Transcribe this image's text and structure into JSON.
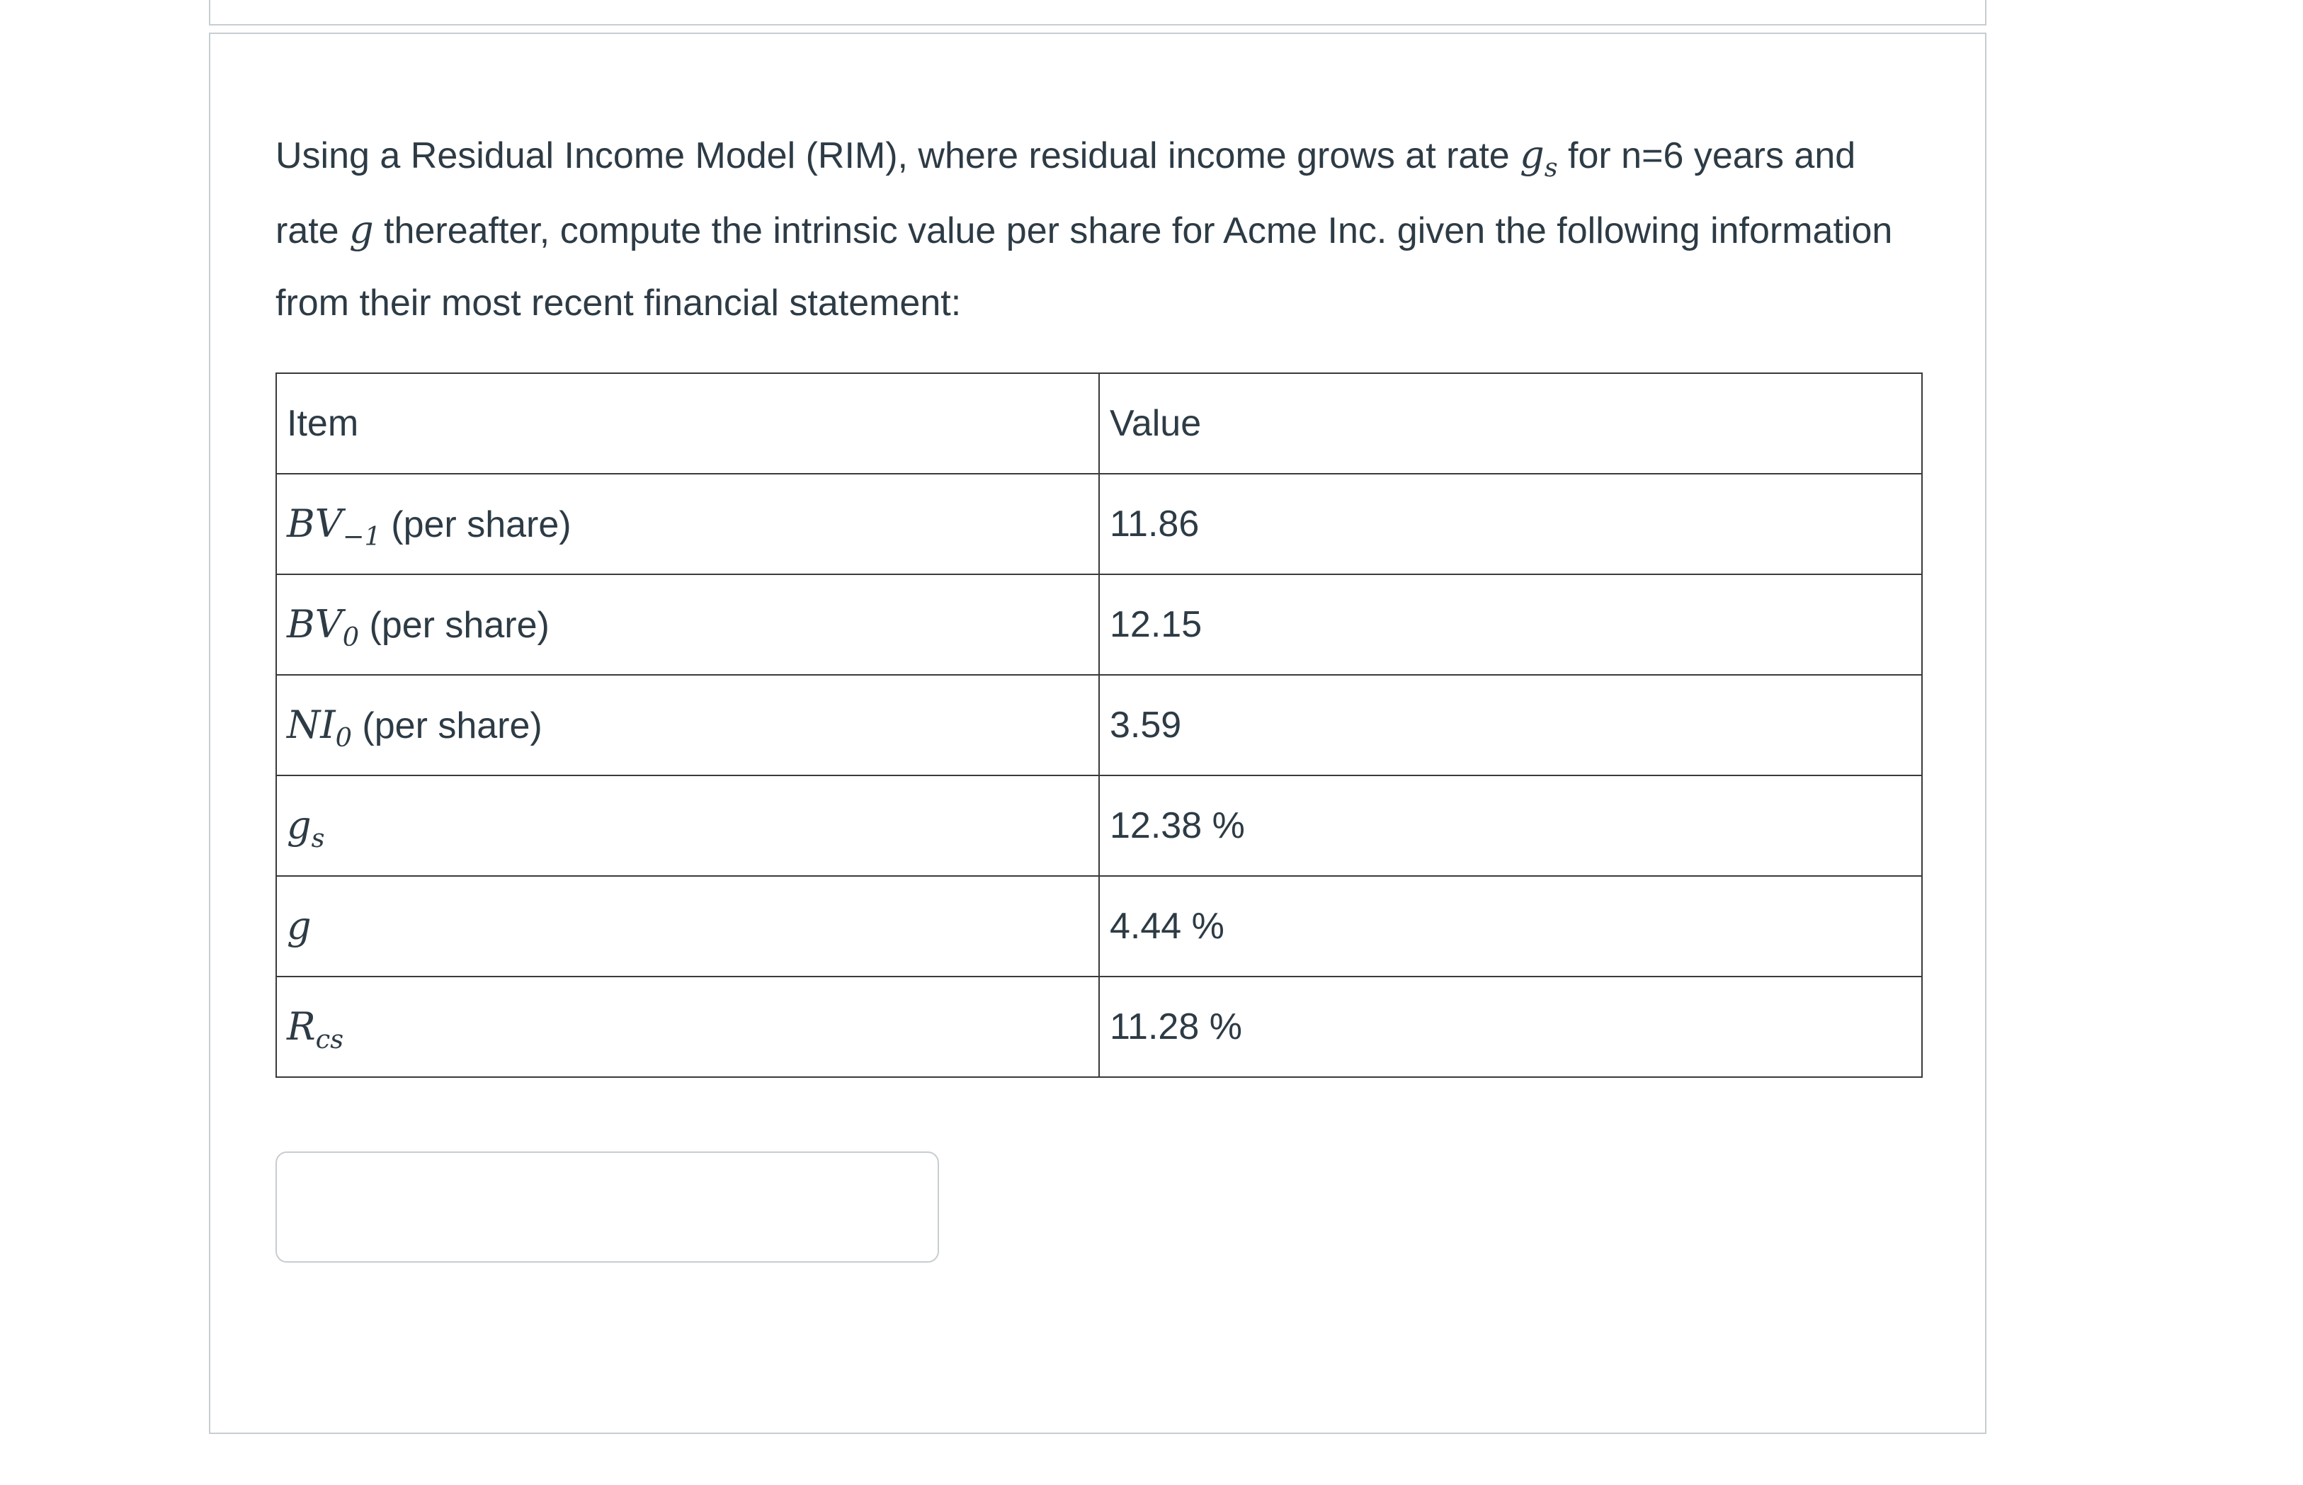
{
  "page": {
    "background": "#ffffff",
    "card_border_color": "#c7cdd1",
    "table_border_color": "#3a3a3a",
    "text_color": "#2d3b45"
  },
  "question": {
    "seg1": "Using a Residual Income Model (RIM), where residual income grows at rate ",
    "math1_var": "g",
    "math1_sub": "s",
    "seg2": " for n=6 years and rate ",
    "math2_var": "g",
    "seg3": " thereafter, compute the intrinsic value per share for Acme Inc. given the following information from their most recent financial statement:"
  },
  "table": {
    "headers": [
      "Item",
      "Value"
    ],
    "rows": [
      {
        "var": "BV",
        "sub": "−1",
        "suffix": " (per share)",
        "value": "11.86"
      },
      {
        "var": "BV",
        "sub": "0",
        "suffix": " (per share)",
        "value": "12.15"
      },
      {
        "var": "NI",
        "sub": "0",
        "suffix": " (per share)",
        "value": "3.59"
      },
      {
        "var": "g",
        "sub": "s",
        "suffix": "",
        "value": "12.38 %"
      },
      {
        "var": "g",
        "sub": "",
        "suffix": "",
        "value": "4.44 %"
      },
      {
        "var": "R",
        "sub": "cs",
        "suffix": "",
        "value": "11.28 %"
      }
    ]
  },
  "answer": {
    "value": "",
    "placeholder": ""
  }
}
